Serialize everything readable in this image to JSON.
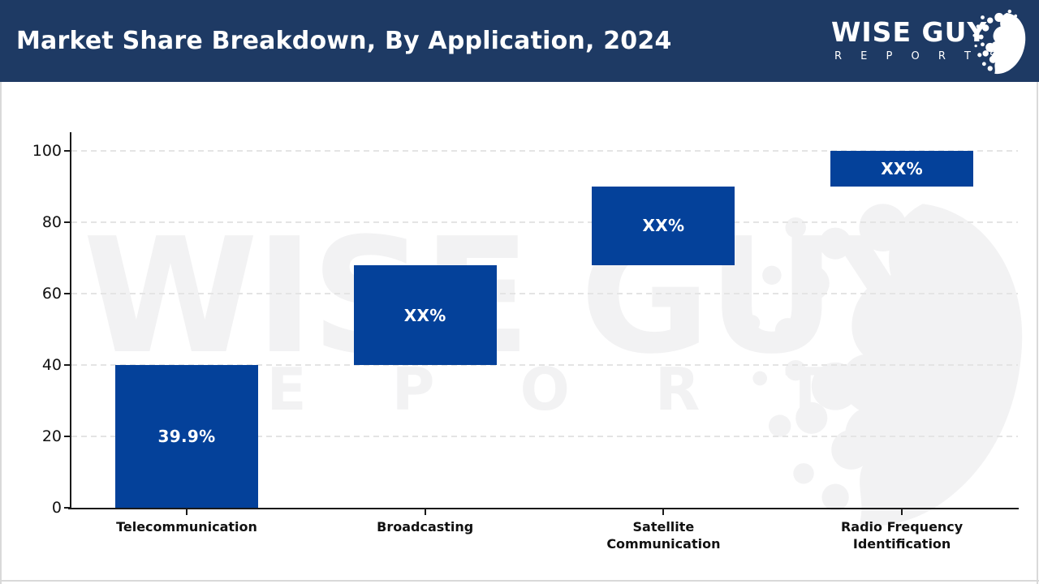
{
  "header": {
    "title": "Market Share Breakdown, By Application, 2024",
    "logo": {
      "line1": "WISE GUY",
      "line2": "R E P O R T S"
    }
  },
  "watermark": {
    "line1": "WISE GUY",
    "line2": "R E P O R T S"
  },
  "chart_data": {
    "type": "bar",
    "subtype": "waterfall",
    "title": "Market Share Breakdown, By Application, 2024",
    "xlabel": "",
    "ylabel": "",
    "ylim": [
      0,
      100
    ],
    "yticks": [
      0,
      20,
      40,
      60,
      80,
      100
    ],
    "grid": true,
    "legend": false,
    "bar_color": "#04419a",
    "bar_label_color": "#ffffff",
    "categories": [
      "Telecommunication",
      "Broadcasting",
      "Satellite Communication",
      "Radio Frequency Identification"
    ],
    "segments": [
      {
        "category": "Telecommunication",
        "label": "39.9%",
        "start": 0,
        "end": 39.9,
        "value": 39.9
      },
      {
        "category": "Broadcasting",
        "label": "XX%",
        "start": 39.9,
        "end": 68,
        "value": 28.1
      },
      {
        "category": "Satellite Communication",
        "label": "XX%",
        "start": 68,
        "end": 90,
        "value": 22
      },
      {
        "category": "Radio Frequency Identification",
        "label": "XX%",
        "start": 90,
        "end": 100,
        "value": 10
      }
    ]
  },
  "colors": {
    "header_bg": "#1e3a64",
    "bar": "#04419a",
    "watermark": "#f2f2f3",
    "grid": "#e4e4e4",
    "axis": "#1a1a1a"
  }
}
